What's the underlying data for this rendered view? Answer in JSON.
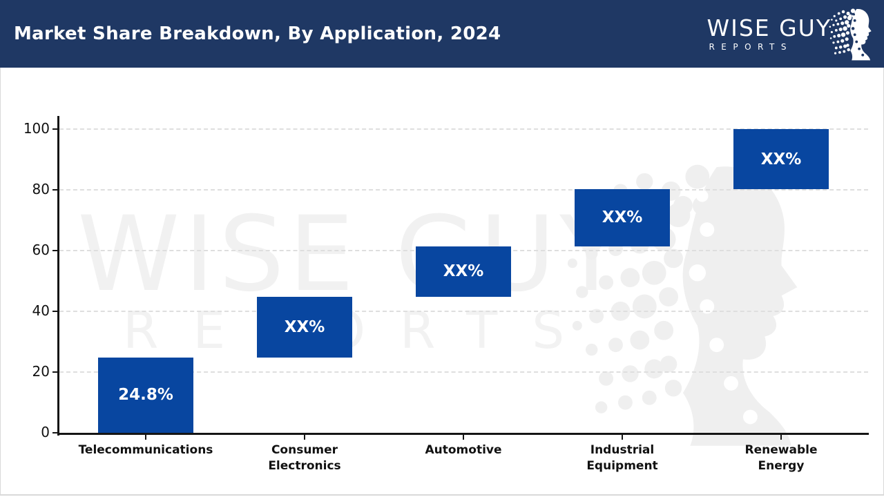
{
  "header": {
    "title": "Market Share Breakdown, By Application, 2024",
    "logo": {
      "line1": "WISE GUY",
      "line2": "REPORTS"
    }
  },
  "watermark": {
    "line1": "WISE GUY",
    "line2": "REPORTS"
  },
  "colors": {
    "header_bg": "#1f3864",
    "bar": "#0846a0",
    "bar_label": "#ffffff",
    "grid": "#dedede",
    "axis": "#151515",
    "watermark": "#f0f0f0"
  },
  "chart_data": {
    "type": "bar",
    "variant": "waterfall",
    "title": "Market Share Breakdown, By Application, 2024",
    "categories": [
      "Telecommunications",
      "Consumer\nElectronics",
      "Automotive",
      "Industrial\nEquipment",
      "Renewable Energy"
    ],
    "segments": [
      {
        "category": "Telecommunications",
        "start": 0,
        "end": 24.8,
        "value": 24.8,
        "label": "24.8%"
      },
      {
        "category": "Consumer Electronics",
        "start": 24.8,
        "end": 44.8,
        "value": 20.0,
        "label": "XX%"
      },
      {
        "category": "Automotive",
        "start": 44.8,
        "end": 61.4,
        "value": 16.6,
        "label": "XX%"
      },
      {
        "category": "Industrial Equipment",
        "start": 61.4,
        "end": 80.2,
        "value": 18.8,
        "label": "XX%"
      },
      {
        "category": "Renewable Energy",
        "start": 80.2,
        "end": 100,
        "value": 19.8,
        "label": "XX%"
      }
    ],
    "yticks": [
      0,
      20,
      40,
      60,
      80,
      100
    ],
    "ylim": [
      0,
      104
    ],
    "xlabel": "",
    "ylabel": "",
    "grid": {
      "axis": "y",
      "style": "dashed"
    },
    "legend": "none",
    "bar_color": "#0846a0",
    "bar_label_color": "#ffffff"
  }
}
